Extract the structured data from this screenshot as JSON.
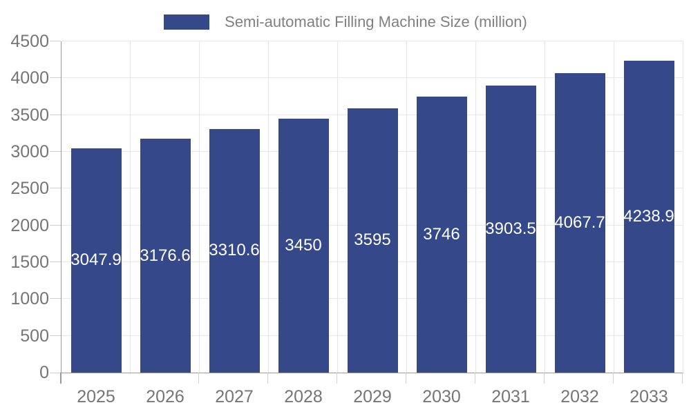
{
  "chart_data": {
    "type": "bar",
    "title": "Semi-automatic Filling Machine Size (million)",
    "categories": [
      "2025",
      "2026",
      "2027",
      "2028",
      "2029",
      "2030",
      "2031",
      "2032",
      "2033"
    ],
    "values": [
      3047.9,
      3176.6,
      3310.6,
      3450,
      3595,
      3746,
      3903.5,
      4067.7,
      4238.9
    ],
    "value_labels": [
      "3047.9",
      "3176.6",
      "3310.6",
      "3450",
      "3595",
      "3746",
      "3903.5",
      "4067.7",
      "4238.9"
    ],
    "xlabel": "",
    "ylabel": "",
    "ylim": [
      0,
      4500
    ],
    "y_ticks": [
      "0",
      "500",
      "1000",
      "1500",
      "2000",
      "2500",
      "3000",
      "3500",
      "4000",
      "4500"
    ],
    "grid": true,
    "legend_position": "top",
    "colors": {
      "bar_fill": "#35488A",
      "value_label_text": "#ffffff",
      "axis_tick_label": "#757575",
      "legend_text": "#808080",
      "gridline": "#e5e5ea",
      "axis_line": "#999999",
      "tick_mark": "#ccd1da"
    }
  }
}
